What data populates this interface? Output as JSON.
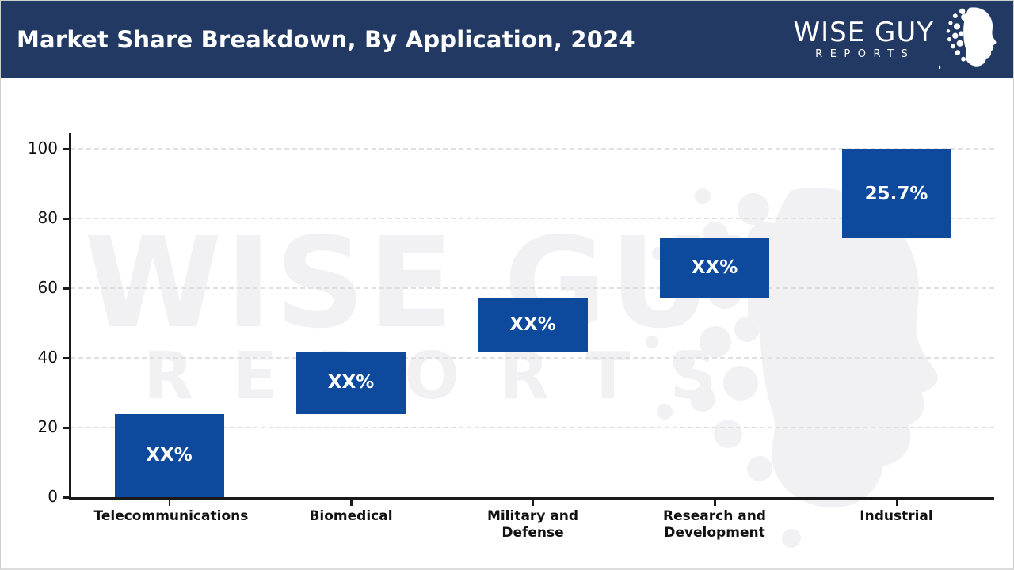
{
  "header": {
    "title": "Market Share Breakdown, By Application, 2024",
    "logo": {
      "line1": "WISE GUY",
      "line2": "REPORTS"
    }
  },
  "watermark": {
    "line1": "WISE GUY",
    "line2": "REPORTS"
  },
  "colors": {
    "header_bg": "#213963",
    "bar": "#0d4a9e",
    "bar_label": "#ffffff",
    "grid": "#e0e0e0",
    "axis": "#1a1a1a",
    "watermark": "#f1f1f3"
  },
  "chart_data": {
    "type": "bar",
    "subtype": "waterfall",
    "title": "Market Share Breakdown, By Application, 2024",
    "xlabel": "",
    "ylabel": "",
    "categories": [
      "Telecommunications",
      "Biomedical",
      "Military and Defense",
      "Research and Development",
      "Industrial"
    ],
    "segments": [
      {
        "category": "Telecommunications",
        "start": 0,
        "end": 23.9,
        "label": "XX%"
      },
      {
        "category": "Biomedical",
        "start": 23.9,
        "end": 41.8,
        "label": "XX%"
      },
      {
        "category": "Military and Defense",
        "start": 41.8,
        "end": 57.3,
        "label": "XX%"
      },
      {
        "category": "Research and Development",
        "start": 57.3,
        "end": 74.3,
        "label": "XX%"
      },
      {
        "category": "Industrial",
        "start": 74.3,
        "end": 100,
        "label": "25.7%"
      }
    ],
    "yticks": [
      0,
      20,
      40,
      60,
      80,
      100
    ],
    "ylim": [
      0,
      100
    ],
    "grid": "horizontal-dashed",
    "legend": "none"
  }
}
